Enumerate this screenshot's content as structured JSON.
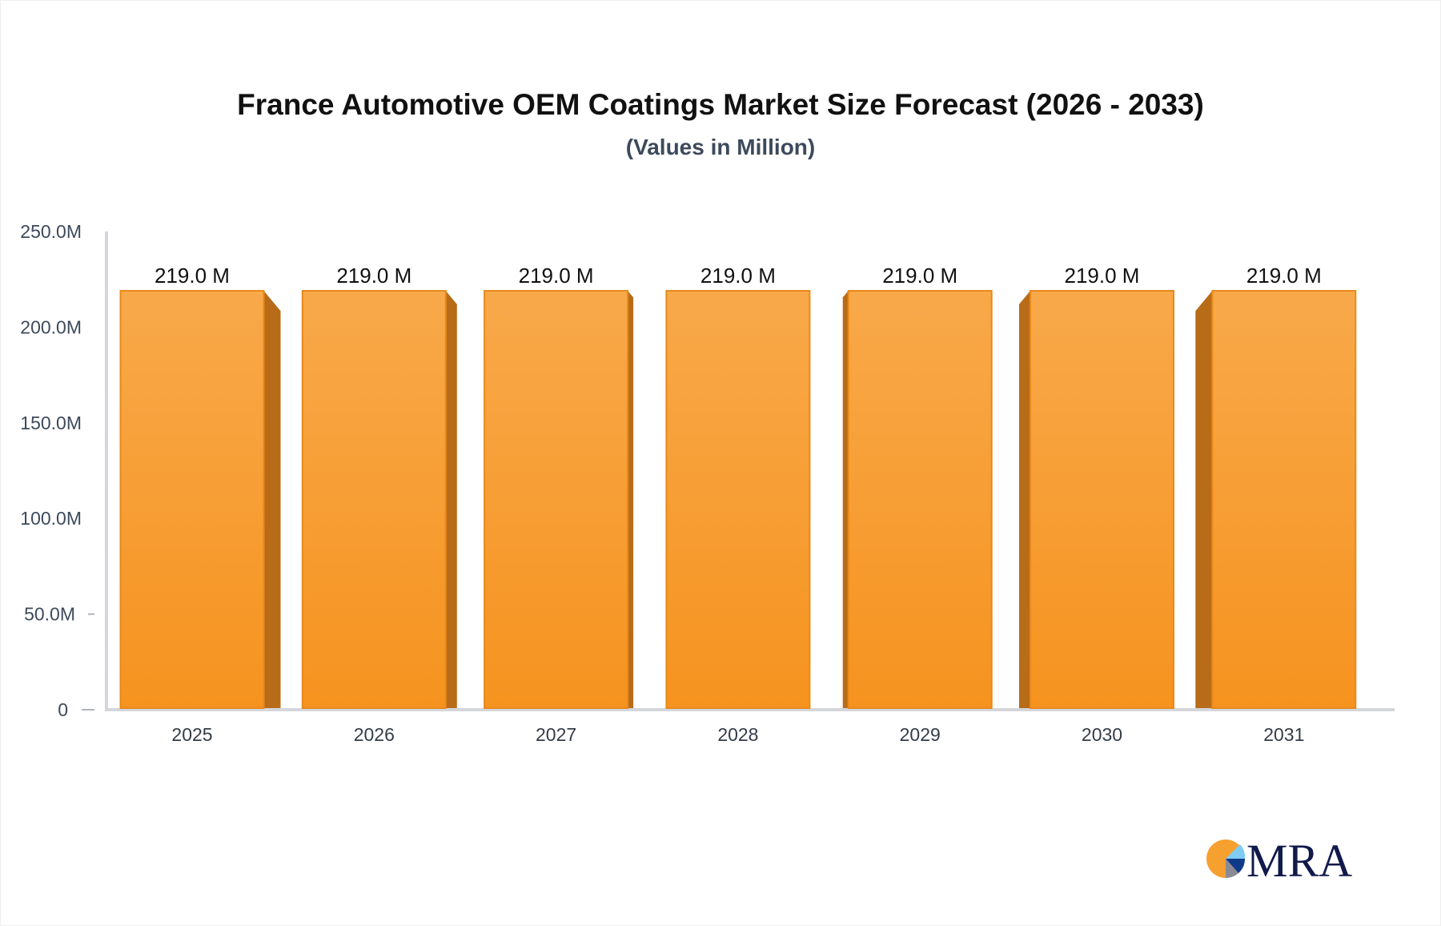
{
  "chart_data": {
    "type": "bar",
    "title": "France Automotive OEM Coatings Market Size Forecast (2026 - 2033)",
    "subtitle": "(Values in Million)",
    "categories": [
      "2025",
      "2026",
      "2027",
      "2028",
      "2029",
      "2030",
      "2031"
    ],
    "values": [
      219.0,
      219.0,
      219.0,
      219.0,
      219.0,
      219.0,
      219.0
    ],
    "data_labels": [
      "219.0 M",
      "219.0 M",
      "219.0 M",
      "219.0 M",
      "219.0 M",
      "219.0 M",
      "219.0 M"
    ],
    "xlabel": "",
    "ylabel": "",
    "ylim": [
      0,
      250
    ],
    "yticks": [
      0,
      50,
      100,
      150,
      200,
      250
    ],
    "ytick_labels": [
      "0",
      "50.0M",
      "100.0M",
      "150.0M",
      "200.0M",
      "250.0M"
    ],
    "grid": false,
    "legend": "none",
    "style": "3d-bar",
    "colors": {
      "bar_top": "#f8a94a",
      "bar_bottom": "#f6931f",
      "bar_side": "#b86c18",
      "bar_edge": "#e8891a",
      "axis": "#d4d6dc",
      "tick_text": "#3d4a5c"
    }
  },
  "logo": {
    "text": "MRA",
    "colors": {
      "orange": "#f6a030",
      "light_blue": "#7fcdf5",
      "navy": "#0f3a8a",
      "text": "#111a4a"
    }
  }
}
